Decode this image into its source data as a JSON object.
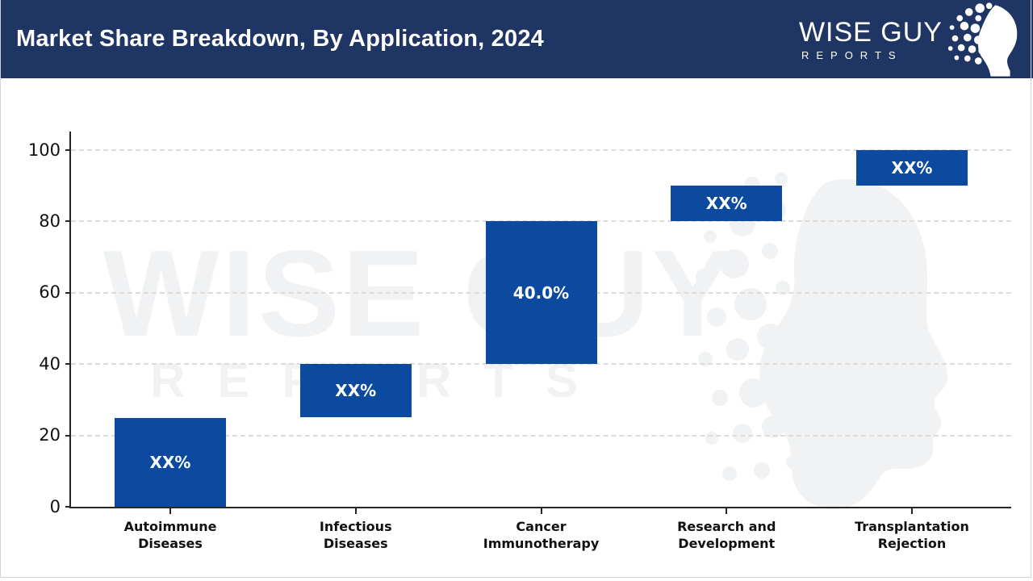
{
  "header": {
    "title": "Market Share Breakdown, By Application, 2024",
    "logo_line1": "WISE GUY",
    "logo_line2": "REPORTS"
  },
  "watermark": {
    "line1": "WISE GUY",
    "line2": "REPORTS",
    "face_icon": "dotted-head-profile"
  },
  "colors": {
    "header_bg": "#1f3564",
    "bar": "#0b4a9e",
    "bar_label": "#ffffff",
    "axis": "#262626",
    "grid": "#dcdcdc",
    "tick_text": "#111111",
    "watermark": "#f1f2f4"
  },
  "chart_data": {
    "type": "bar",
    "subtype": "waterfall",
    "title": "Market Share Breakdown, By Application, 2024",
    "categories": [
      "Autoimmune Diseases",
      "Infectious Diseases",
      "Cancer Immunotherapy",
      "Research and Development",
      "Transplantation Rejection"
    ],
    "category_lines": [
      [
        "Autoimmune",
        "Diseases"
      ],
      [
        "Infectious",
        "Diseases"
      ],
      [
        "Cancer",
        "Immunotherapy"
      ],
      [
        "Research and",
        "Development"
      ],
      [
        "Transplantation",
        "Rejection"
      ]
    ],
    "segments": [
      {
        "category": "Autoimmune Diseases",
        "start": 0,
        "end": 25,
        "value": 25,
        "label": "XX%"
      },
      {
        "category": "Infectious Diseases",
        "start": 25,
        "end": 40,
        "value": 15,
        "label": "XX%"
      },
      {
        "category": "Cancer Immunotherapy",
        "start": 40,
        "end": 80,
        "value": 40,
        "label": "40.0%"
      },
      {
        "category": "Research and Development",
        "start": 80,
        "end": 90,
        "value": 10,
        "label": "XX%"
      },
      {
        "category": "Transplantation Rejection",
        "start": 90,
        "end": 100,
        "value": 10,
        "label": "XX%"
      }
    ],
    "yticks": [
      0,
      20,
      40,
      60,
      80,
      100
    ],
    "ylim": [
      0,
      100
    ],
    "xlabel": "",
    "ylabel": "",
    "grid": "horizontal-dashed",
    "legend": "none"
  }
}
